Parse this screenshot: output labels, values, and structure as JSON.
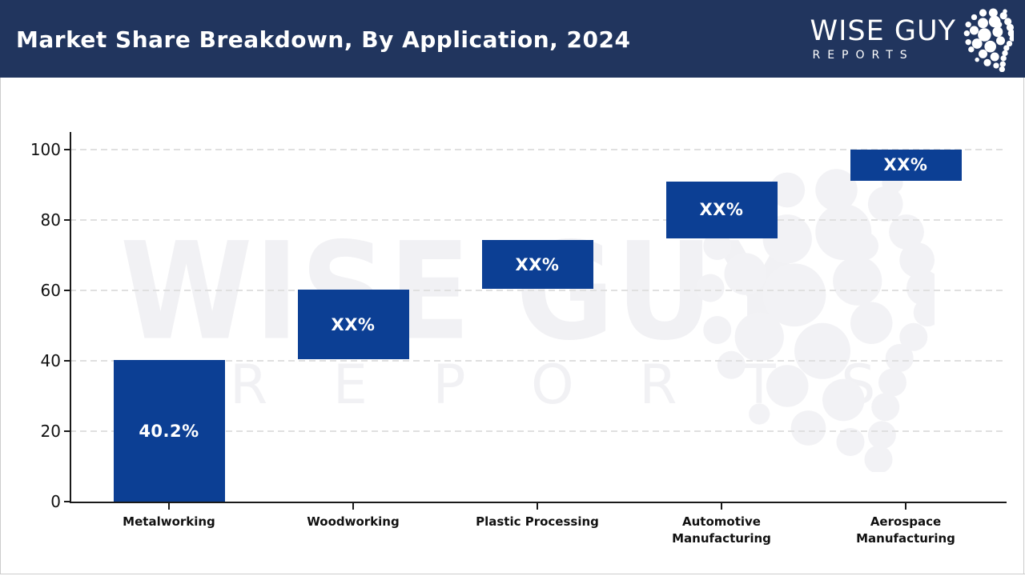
{
  "header": {
    "title": "Market Share Breakdown, By Application, 2024",
    "logo": {
      "line1": "WISE GUY",
      "line2": "REPORTS"
    }
  },
  "watermark": {
    "line1": "WISE GUY",
    "line2": "R E P O R T S"
  },
  "colors": {
    "header_bg": "#21355e",
    "bar_blue": "#0c3f94",
    "gridline": "#e0e0e0",
    "axis": "#1a1a1a",
    "watermark": "#f1f1f4"
  },
  "chart_data": {
    "type": "bar",
    "subtype": "waterfall",
    "title": "Market Share Breakdown, By Application, 2024",
    "categories": [
      "Metalworking",
      "Woodworking",
      "Plastic Processing",
      "Automotive Manufacturing",
      "Aerospace Manufacturing"
    ],
    "segments": [
      {
        "category": "Metalworking",
        "start": 0,
        "end": 40.2,
        "label": "40.2%"
      },
      {
        "category": "Woodworking",
        "start": 40.4,
        "end": 60.2,
        "label": "XX%"
      },
      {
        "category": "Plastic Processing",
        "start": 60.4,
        "end": 74.3,
        "label": "XX%"
      },
      {
        "category": "Automotive Manufacturing",
        "start": 74.8,
        "end": 91.0,
        "label": "XX%"
      },
      {
        "category": "Aerospace Manufacturing",
        "start": 91.2,
        "end": 100.0,
        "label": "XX%"
      }
    ],
    "yticks": [
      0,
      20,
      40,
      60,
      80,
      100
    ],
    "ylim": [
      0,
      105
    ],
    "xlabel": "",
    "ylabel": "",
    "grid": "horizontal-dashed",
    "legend": "none"
  }
}
